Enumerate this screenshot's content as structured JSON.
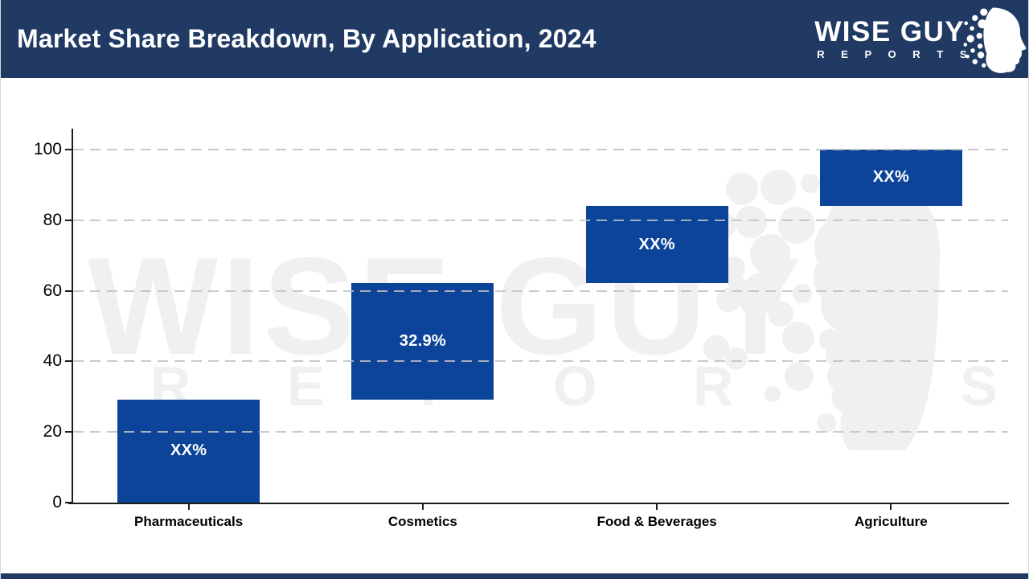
{
  "header": {
    "title": "Market Share Breakdown, By Application, 2024",
    "logo_line1": "WISE GUY",
    "logo_line2": "R E P O R T S"
  },
  "watermark": {
    "line1": "WISE GUY",
    "line2": "R E P O R T S"
  },
  "colors": {
    "header_navy": "#203a64",
    "footer_navy": "#203a64",
    "bar_blue": "#0b4499",
    "grid_gray": "#c1c1c1",
    "watermark_gray": "#f0f0f2",
    "axis_black": "#1c1c1c",
    "bar_label_white": "#ffffff"
  },
  "chart_data": {
    "type": "bar",
    "subtype": "floating-waterfall",
    "title": "Market Share Breakdown, By Application, 2024",
    "xlabel": "",
    "ylabel": "",
    "categories": [
      "Pharmaceuticals",
      "Cosmetics",
      "Food & Beverages",
      "Agriculture"
    ],
    "segments": [
      {
        "category": "Pharmaceuticals",
        "start": 0,
        "end": 29.2,
        "value_label": "XX%"
      },
      {
        "category": "Cosmetics",
        "start": 29.2,
        "end": 62.1,
        "value_label": "32.9%"
      },
      {
        "category": "Food & Beverages",
        "start": 62.1,
        "end": 84.1,
        "value_label": "XX%"
      },
      {
        "category": "Agriculture",
        "start": 84.1,
        "end": 100,
        "value_label": "XX%"
      }
    ],
    "yticks": [
      0,
      20,
      40,
      60,
      80,
      100
    ],
    "ylim": [
      0,
      106
    ],
    "grid": "horizontal dashed, drawn over bars",
    "legend": "none"
  }
}
